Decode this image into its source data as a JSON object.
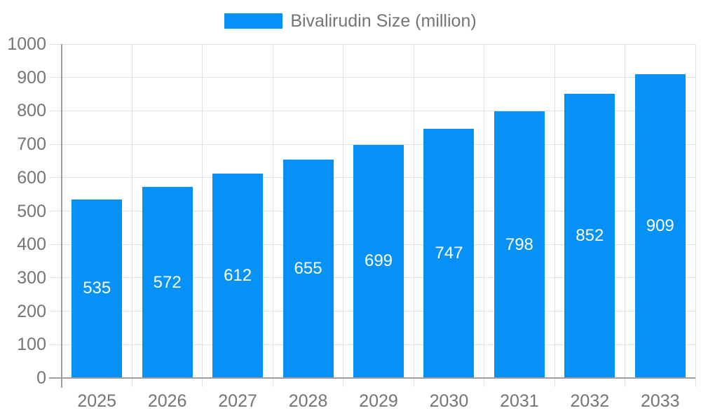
{
  "legend": {
    "label": "Bivalirudin Size (million)"
  },
  "colors": {
    "bar": "#0591F5",
    "grid_line": "#E0E0E0",
    "axis_line": "#9E9E9E",
    "tick_text": "#757575",
    "value_label_text": "#FFFFFF",
    "background": "#FFFFFF"
  },
  "chart_data": {
    "type": "bar",
    "title": "",
    "categories": [
      "2025",
      "2026",
      "2027",
      "2028",
      "2029",
      "2030",
      "2031",
      "2032",
      "2033"
    ],
    "series": [
      {
        "name": "Bivalirudin Size (million)",
        "values": [
          535,
          572,
          612,
          655,
          699,
          747,
          798,
          852,
          909
        ]
      }
    ],
    "xlabel": "",
    "ylabel": "",
    "ylim": [
      0,
      1000
    ],
    "yticks": [
      0,
      100,
      200,
      300,
      400,
      500,
      600,
      700,
      800,
      900,
      1000
    ],
    "grid": true,
    "legend_position": "top-center",
    "value_label_placement": "inside-center"
  }
}
